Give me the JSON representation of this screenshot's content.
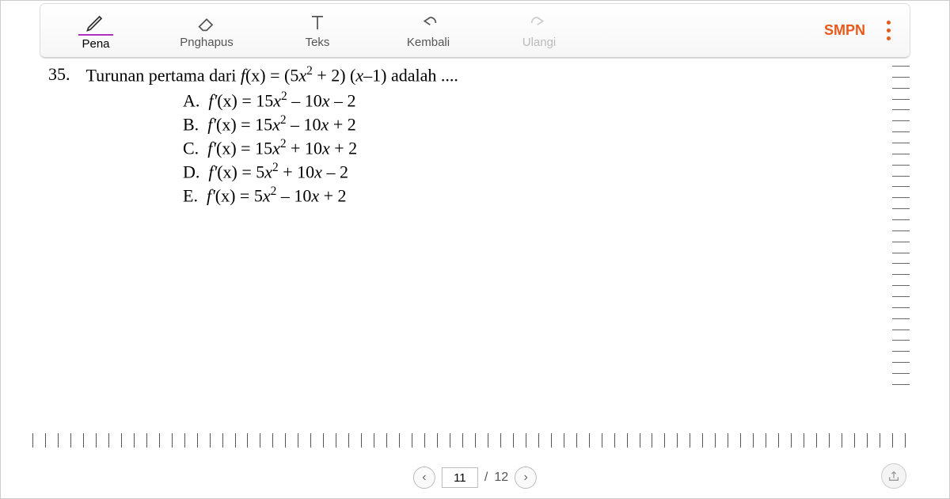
{
  "toolbar": {
    "items": [
      {
        "label": "Pena",
        "active": true
      },
      {
        "label": "Pnghapus",
        "active": false
      },
      {
        "label": "Teks",
        "active": false
      },
      {
        "label": "Kembali",
        "active": false
      },
      {
        "label": "Ulangi",
        "active": false,
        "disabled": true
      }
    ],
    "right_label": "SMPN"
  },
  "pre_line": "E.",
  "question": {
    "number": "35.",
    "text_html": "Turunan pertama dari <i>f</i>(x) = (5<i>x</i><sup>2</sup> + 2) (<i>x</i>–1) adalah ....",
    "options": [
      {
        "letter": "A.",
        "html": "<i>f'</i>(x) = 15<i>x</i><sup>2</sup> – 10<i>x</i> – 2"
      },
      {
        "letter": "B.",
        "html": "<i>f'</i>(x) = 15<i>x</i><sup>2</sup> – 10<i>x</i> + 2"
      },
      {
        "letter": "C.",
        "html": "<i>f'</i>(x) = 15<i>x</i><sup>2</sup> + 10<i>x</i> + 2"
      },
      {
        "letter": "D.",
        "html": "<i>f'</i>(x) = 5<i>x</i><sup>2</sup> + 10<i>x</i> – 2"
      },
      {
        "letter": "E.",
        "html": "<i>f'</i>(x) = 5<i>x</i><sup>2</sup> – 10<i>x</i> + 2"
      }
    ]
  },
  "pager": {
    "current": "11",
    "total": "12",
    "sep": "/"
  },
  "ruler": {
    "bottom_ticks": 70,
    "right_ticks": 30
  },
  "colors": {
    "accent": "#e85a1a",
    "pena_underline": "#b030c0"
  }
}
